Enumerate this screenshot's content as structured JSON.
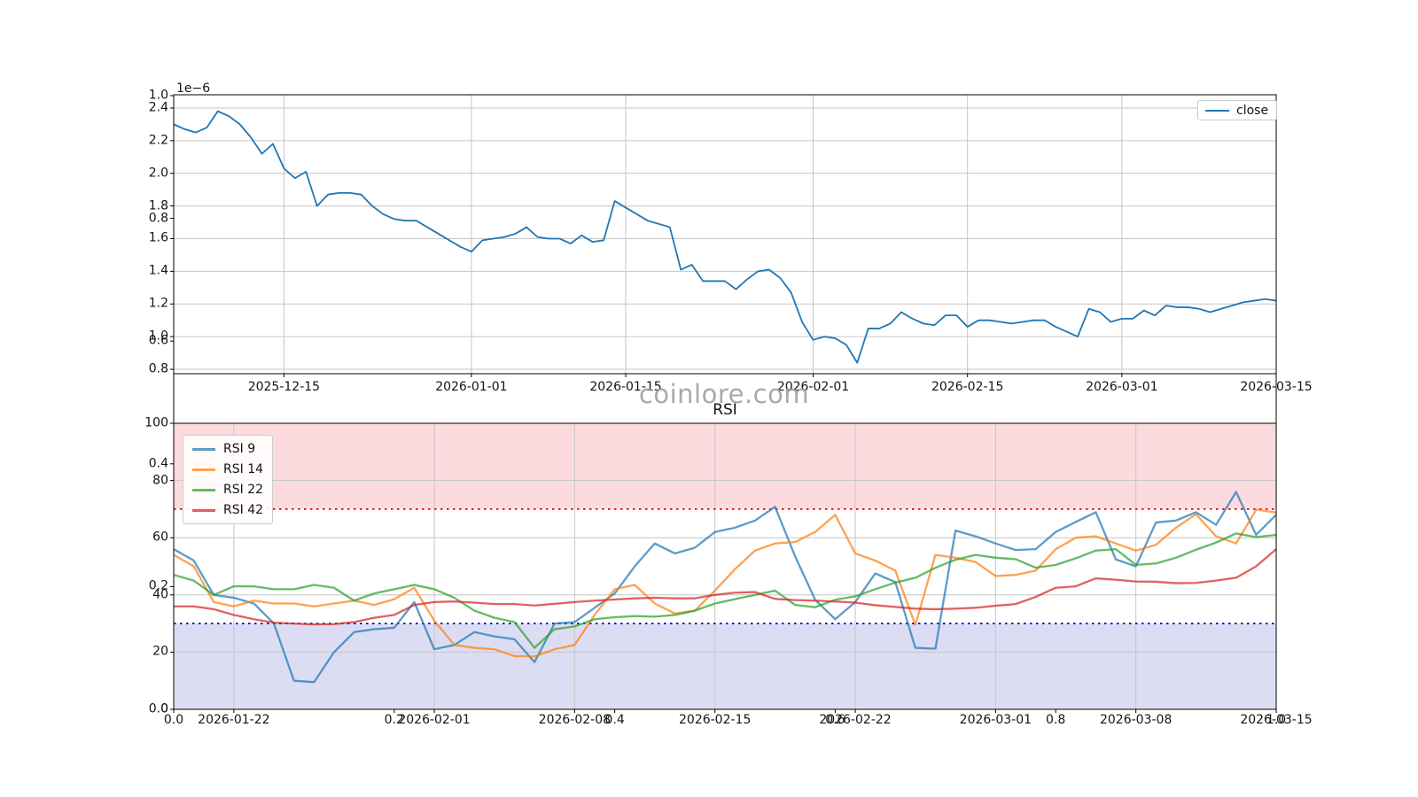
{
  "watermark": "coinlore.com",
  "ghost_axis": {
    "x_labels": [
      "0.0",
      "0.2",
      "0.4",
      "0.6",
      "0.8",
      "1.0"
    ],
    "y_labels": [
      "0.0",
      "0.2",
      "0.4",
      "0.6",
      "0.8",
      "1.0"
    ]
  },
  "chart_data": [
    {
      "type": "line",
      "name": "price",
      "grid": true,
      "legend_position": "top-right",
      "x_axis": {
        "range": [
          0,
          100
        ],
        "start_date": "2025-12-05",
        "ticks": [
          {
            "pos": 10,
            "label": "2025-12-15"
          },
          {
            "pos": 27,
            "label": "2026-01-01"
          },
          {
            "pos": 41,
            "label": "2026-01-15"
          },
          {
            "pos": 58,
            "label": "2026-02-01"
          },
          {
            "pos": 72,
            "label": "2026-02-15"
          },
          {
            "pos": 86,
            "label": "2026-03-01"
          },
          {
            "pos": 100,
            "label": "2026-03-15"
          }
        ]
      },
      "y_axis": {
        "range": [
          0.773,
          2.481
        ],
        "offset_label": "1e−6",
        "unit_scale": "1e-6",
        "ticks": [
          {
            "v": 0.8,
            "label": "0.8"
          },
          {
            "v": 1.0,
            "label": "1.0"
          },
          {
            "v": 1.2,
            "label": "1.2"
          },
          {
            "v": 1.4,
            "label": "1.4"
          },
          {
            "v": 1.6,
            "label": "1.6"
          },
          {
            "v": 1.8,
            "label": "1.8"
          },
          {
            "v": 2.0,
            "label": "2.0"
          },
          {
            "v": 2.2,
            "label": "2.2"
          },
          {
            "v": 2.4,
            "label": "2.4"
          }
        ]
      },
      "series": [
        {
          "name": "close",
          "color": "#1f77b4",
          "opacity": 1,
          "width": 1.8,
          "values": [
            2.3,
            2.27,
            2.25,
            2.28,
            2.38,
            2.35,
            2.3,
            2.22,
            2.12,
            2.18,
            2.03,
            1.97,
            2.01,
            1.8,
            1.87,
            1.88,
            1.88,
            1.87,
            1.8,
            1.75,
            1.72,
            1.71,
            1.71,
            1.67,
            1.63,
            1.59,
            1.55,
            1.52,
            1.59,
            1.6,
            1.61,
            1.63,
            1.67,
            1.61,
            1.6,
            1.6,
            1.57,
            1.62,
            1.58,
            1.59,
            1.83,
            1.79,
            1.75,
            1.71,
            1.69,
            1.67,
            1.41,
            1.44,
            1.34,
            1.34,
            1.34,
            1.29,
            1.35,
            1.4,
            1.41,
            1.36,
            1.27,
            1.09,
            0.98,
            1.0,
            0.99,
            0.95,
            0.84,
            1.05,
            1.05,
            1.08,
            1.15,
            1.11,
            1.08,
            1.07,
            1.13,
            1.13,
            1.06,
            1.1,
            1.1,
            1.09,
            1.08,
            1.09,
            1.1,
            1.1,
            1.06,
            1.03,
            1.0,
            1.17,
            1.15,
            1.09,
            1.11,
            1.11,
            1.16,
            1.13,
            1.19,
            1.18,
            1.18,
            1.17,
            1.15,
            1.17,
            1.19,
            1.21,
            1.22,
            1.23,
            1.22
          ]
        }
      ]
    },
    {
      "type": "line",
      "name": "rsi",
      "title": "RSI",
      "grid": true,
      "legend_position": "top-left",
      "x_axis": {
        "range": [
          0,
          55
        ],
        "start_date": "2026-01-19",
        "ticks": [
          {
            "pos": 3,
            "label": "2026-01-22"
          },
          {
            "pos": 13,
            "label": "2026-02-01"
          },
          {
            "pos": 20,
            "label": "2026-02-08"
          },
          {
            "pos": 27,
            "label": "2026-02-15"
          },
          {
            "pos": 34,
            "label": "2026-02-22"
          },
          {
            "pos": 41,
            "label": "2026-03-01"
          },
          {
            "pos": 48,
            "label": "2026-03-08"
          },
          {
            "pos": 55,
            "label": "2026-03-15"
          }
        ]
      },
      "y_axis": {
        "range": [
          0,
          100
        ],
        "ticks": [
          {
            "v": 0,
            "label": "0"
          },
          {
            "v": 20,
            "label": "20"
          },
          {
            "v": 40,
            "label": "40"
          },
          {
            "v": 60,
            "label": "60"
          },
          {
            "v": 80,
            "label": "80"
          },
          {
            "v": 100,
            "label": "100"
          }
        ]
      },
      "overbought": {
        "level": 70,
        "line_color": "#e60000",
        "band_color": "#fcdbde"
      },
      "oversold": {
        "level": 30,
        "line_color": "#0000bb",
        "band_color": "#dcddf3"
      },
      "series": [
        {
          "name": "RSI 9",
          "color": "#1f77b4",
          "opacity": 0.73,
          "width": 2.3,
          "values": [
            56,
            52,
            40,
            39,
            37,
            30,
            10,
            9.5,
            20,
            27,
            28,
            28.5,
            37.5,
            21,
            22.5,
            27,
            25.5,
            24.5,
            16.5,
            30,
            30.5,
            35.5,
            40.5,
            50,
            58,
            54.5,
            56.5,
            62,
            63.5,
            66,
            70.8,
            53.5,
            38.3,
            31.5,
            37.5,
            47.5,
            44.5,
            21.5,
            21.2,
            62.5,
            60.5,
            58,
            55.7,
            56,
            62,
            65.5,
            68.9,
            52.4,
            50,
            65.3,
            66,
            68.9,
            64.5,
            76,
            61,
            68
          ]
        },
        {
          "name": "RSI 14",
          "color": "#ff7f0e",
          "opacity": 0.73,
          "width": 2.3,
          "values": [
            54,
            50,
            37.5,
            36,
            38,
            37,
            37,
            36,
            37,
            38,
            36.5,
            38.5,
            42.5,
            31,
            22.5,
            21.5,
            21,
            18.6,
            18.5,
            21,
            22.5,
            33,
            42,
            43.5,
            37,
            33.5,
            34.5,
            41.5,
            49,
            55.5,
            58,
            58.5,
            62,
            68,
            54.5,
            52,
            48.5,
            29.5,
            54,
            53,
            51.5,
            46.6,
            47,
            48.5,
            56,
            60,
            60.5,
            58,
            55.5,
            57.5,
            63.5,
            68.2,
            60.5,
            58,
            69.8,
            68.8
          ]
        },
        {
          "name": "RSI 22",
          "color": "#2ca02c",
          "opacity": 0.73,
          "width": 2.3,
          "values": [
            47,
            45,
            40,
            43,
            43,
            42,
            42,
            43.5,
            42.5,
            38,
            40.5,
            42,
            43.5,
            42,
            39,
            34.5,
            32,
            30.5,
            21.5,
            28,
            29,
            31.5,
            32.2,
            32.6,
            32.4,
            33,
            34.5,
            37,
            38.5,
            40,
            41.5,
            36.5,
            35.7,
            38.3,
            39.5,
            42,
            44.3,
            46,
            49.5,
            52.3,
            54,
            53,
            52.5,
            49.5,
            50.5,
            52.8,
            55.5,
            56,
            50.5,
            51,
            53,
            55.8,
            58.3,
            61.5,
            60.2,
            61
          ]
        },
        {
          "name": "RSI 42",
          "color": "#d62728",
          "opacity": 0.73,
          "width": 2.3,
          "values": [
            36,
            36,
            35,
            33,
            31.5,
            30.3,
            30,
            29.7,
            29.8,
            30.5,
            32,
            33,
            36.5,
            37.5,
            37.7,
            37.3,
            36.8,
            36.8,
            36.3,
            36.9,
            37.5,
            38,
            38.4,
            38.8,
            39,
            38.8,
            38.8,
            40,
            40.8,
            41,
            38.6,
            38.2,
            38,
            37.7,
            37.3,
            36.4,
            35.8,
            35.2,
            35,
            35.2,
            35.5,
            36.2,
            36.8,
            39.3,
            42.5,
            43,
            45.8,
            45.3,
            44.7,
            44.6,
            44.1,
            44.2,
            45,
            46,
            50,
            56
          ]
        }
      ]
    }
  ]
}
